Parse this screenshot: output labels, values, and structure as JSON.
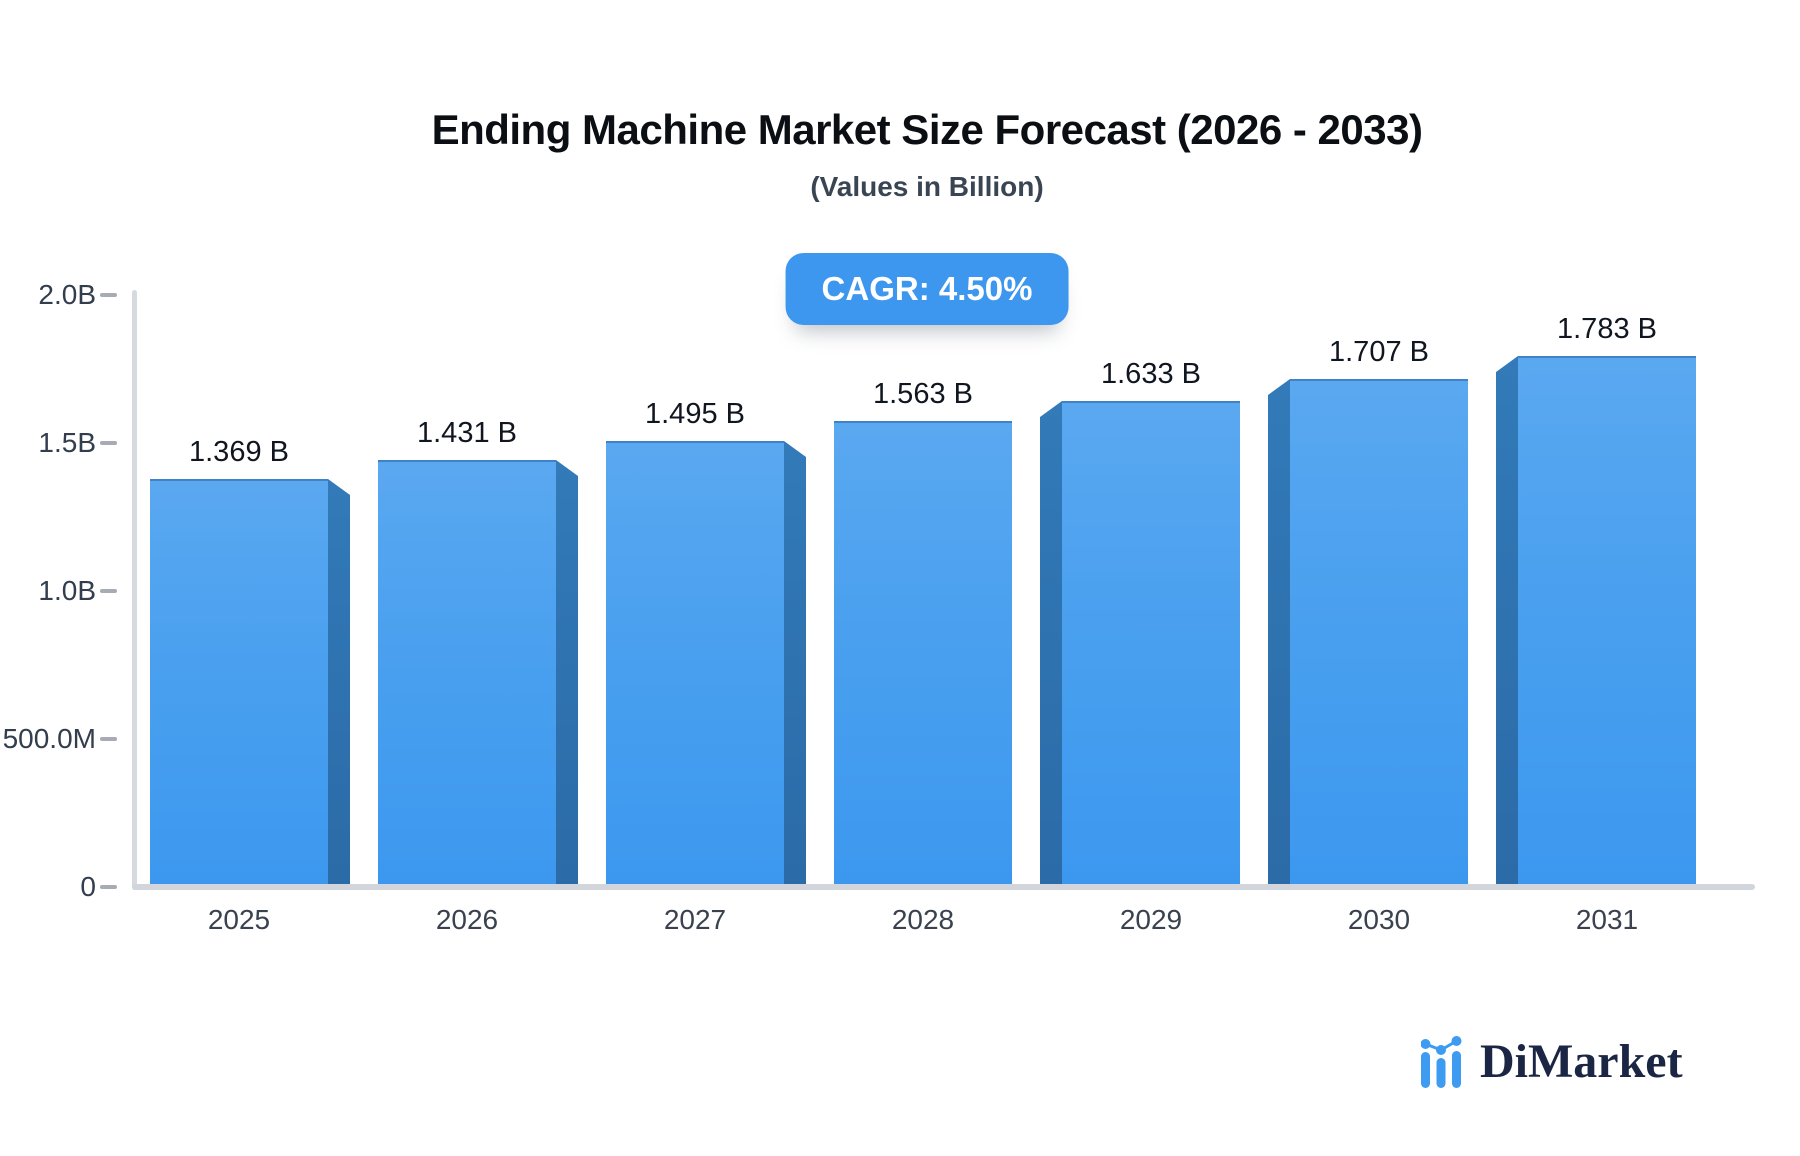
{
  "header": {
    "title": "Ending Machine Market Size Forecast (2026 - 2033)",
    "subtitle": "(Values in Billion)",
    "cagr_badge": "CAGR: 4.50%"
  },
  "brand": {
    "name": "DiMarket"
  },
  "chart_data": {
    "type": "bar",
    "title": "Ending Machine Market Size Forecast (2026 - 2033)",
    "subtitle": "(Values in Billion)",
    "cagr": "4.50%",
    "categories": [
      "2025",
      "2026",
      "2027",
      "2028",
      "2029",
      "2030",
      "2031"
    ],
    "values": [
      1.369,
      1.431,
      1.495,
      1.563,
      1.633,
      1.707,
      1.783
    ],
    "value_labels": [
      "1.369 B",
      "1.431 B",
      "1.495 B",
      "1.563 B",
      "1.633 B",
      "1.707 B",
      "1.783 B"
    ],
    "unit": "Billion",
    "xlabel": "",
    "ylabel": "",
    "ylim": [
      0,
      2.0
    ],
    "yticks": [
      {
        "value": 2.0,
        "label": "2.0B"
      },
      {
        "value": 1.5,
        "label": "1.5B"
      },
      {
        "value": 1.0,
        "label": "1.0B"
      },
      {
        "value": 0.5,
        "label": "500.0M"
      },
      {
        "value": 0.0,
        "label": "0"
      }
    ],
    "grid": false,
    "legend_position": "none",
    "colors": {
      "bar_top": "#5aa8f0",
      "bar_bottom": "#3c98ef",
      "bar_side": "#2e74b2",
      "badge_background": "#3e97ee",
      "badge_text": "#ffffff",
      "axis_line": "#d4d7dc",
      "tick_text": "#323d4d",
      "value_text": "#101620",
      "logo_blue": "#3d9bf2",
      "logo_navy": "#1b2645"
    }
  }
}
